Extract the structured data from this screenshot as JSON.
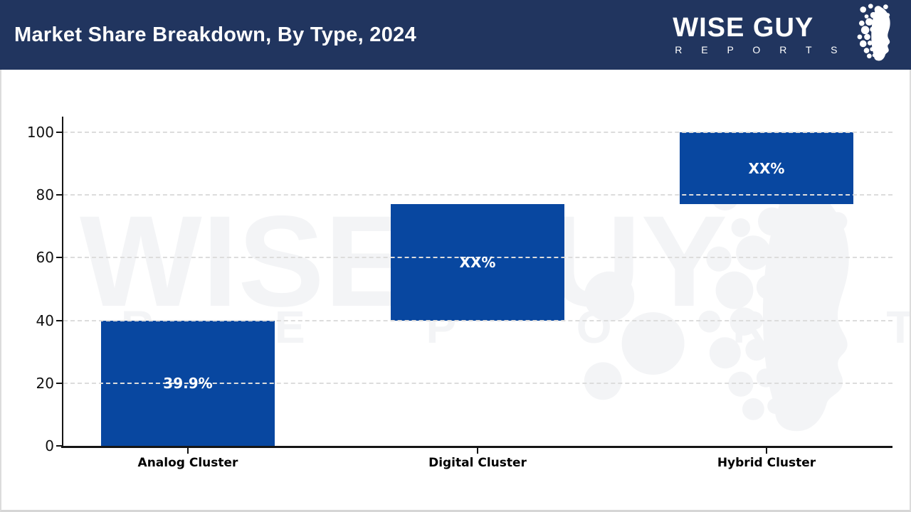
{
  "header": {
    "title": "Market Share Breakdown, By Type, 2024",
    "logo": {
      "line1": "WISE GUY",
      "line2": "R E P O R T S"
    }
  },
  "watermark": {
    "line1": "WISE GUY",
    "line2": "R E P O R T S"
  },
  "colors": {
    "header_bg": "#21355F",
    "bar": "#0847A0",
    "grid": "#DCDCDC",
    "watermark": "#F3F4F6",
    "axis": "#151515",
    "bar_label": "#FFFFFF"
  },
  "chart_data": {
    "type": "bar",
    "subtype": "waterfall",
    "title": "Market Share Breakdown, By Type, 2024",
    "xlabel": "",
    "ylabel": "",
    "categories": [
      "Analog Cluster",
      "Digital Cluster",
      "Hybrid Cluster"
    ],
    "segments": [
      {
        "category": "Analog Cluster",
        "start": 0,
        "end": 39.9,
        "label": "39.9%"
      },
      {
        "category": "Digital Cluster",
        "start": 39.9,
        "end": 77,
        "label": "XX%"
      },
      {
        "category": "Hybrid Cluster",
        "start": 77,
        "end": 100,
        "label": "XX%"
      }
    ],
    "ylim": [
      0,
      105
    ],
    "yticks": [
      0,
      20,
      40,
      60,
      80,
      100
    ],
    "grid": "horizontal-dashed",
    "legend": "none",
    "bar_color": "#0847A0",
    "label_color": "#FFFFFF"
  }
}
